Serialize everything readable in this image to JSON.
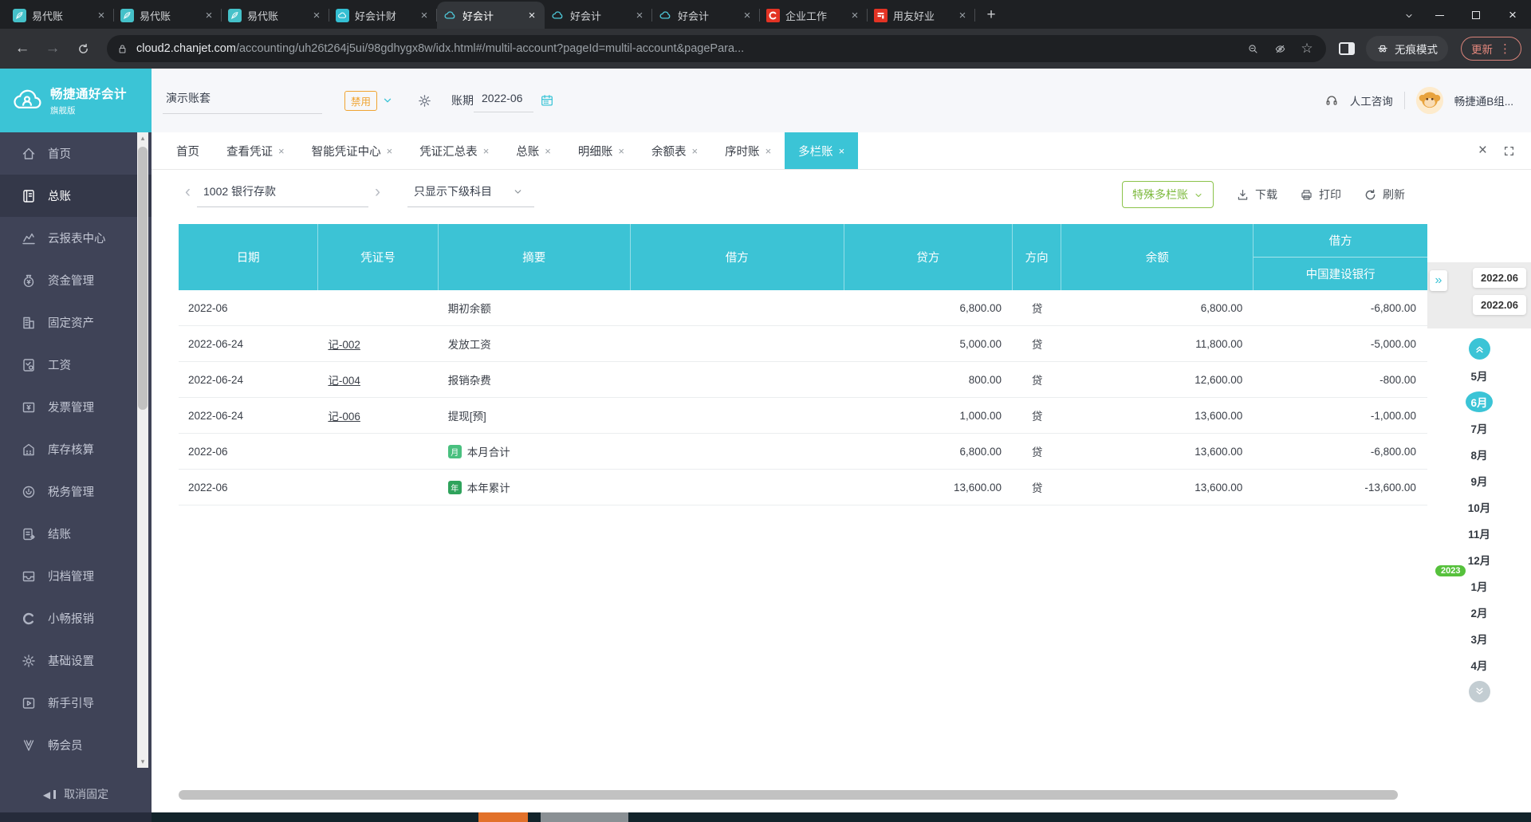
{
  "browser": {
    "tabs": [
      {
        "label": "易代账",
        "icon": "feather-icon",
        "active": false
      },
      {
        "label": "易代账",
        "icon": "feather-icon",
        "active": false
      },
      {
        "label": "易代账",
        "icon": "feather-icon",
        "active": false
      },
      {
        "label": "好会计财",
        "icon": "cloud-solid-icon",
        "active": false
      },
      {
        "label": "好会计",
        "icon": "cloud-icon",
        "active": true
      },
      {
        "label": "好会计",
        "icon": "cloud-icon",
        "active": false
      },
      {
        "label": "好会计",
        "icon": "cloud-icon",
        "active": false
      },
      {
        "label": "企业工作",
        "icon": "c-logo-icon",
        "active": false
      },
      {
        "label": "用友好业",
        "icon": "uf-logo-icon",
        "active": false
      }
    ],
    "url_domain": "cloud2.chanjet.com",
    "url_path": "/accounting/uh26t264j5ui/98gdhygx8w/idx.html#/multil-account?pageId=multil-account&pagePara...",
    "incognito_label": "无痕模式",
    "update_label": "更新"
  },
  "app_header": {
    "brand_name": "畅捷通好会计",
    "brand_edition": "旗舰版",
    "account_set_label": "演示账套",
    "disabled_badge": "禁用",
    "period_label": "账期",
    "period_value": "2022-06",
    "support_label": "人工咨询",
    "user_name": "畅捷通B组..."
  },
  "sidebar": {
    "items": [
      {
        "label": "首页",
        "icon": "home-icon",
        "active": false
      },
      {
        "label": "总账",
        "icon": "ledger-icon",
        "active": true
      },
      {
        "label": "云报表中心",
        "icon": "report-icon",
        "active": false
      },
      {
        "label": "资金管理",
        "icon": "funds-icon",
        "active": false
      },
      {
        "label": "固定资产",
        "icon": "fixed-asset-icon",
        "active": false
      },
      {
        "label": "工资",
        "icon": "payroll-icon",
        "active": false
      },
      {
        "label": "发票管理",
        "icon": "invoice-icon",
        "active": false
      },
      {
        "label": "库存核算",
        "icon": "inventory-icon",
        "active": false
      },
      {
        "label": "税务管理",
        "icon": "tax-icon",
        "active": false
      },
      {
        "label": "结账",
        "icon": "closing-icon",
        "active": false
      },
      {
        "label": "归档管理",
        "icon": "archive-icon",
        "active": false
      },
      {
        "label": "小畅报销",
        "icon": "reimburse-icon",
        "active": false
      },
      {
        "label": "基础设置",
        "icon": "settings-icon",
        "active": false
      },
      {
        "label": "新手引导",
        "icon": "guide-icon",
        "active": false
      },
      {
        "label": "畅会员",
        "icon": "member-icon",
        "active": false
      }
    ],
    "unpin_label": "取消固定"
  },
  "workspace_tabs": [
    {
      "label": "首页",
      "closable": false,
      "active": false
    },
    {
      "label": "查看凭证",
      "closable": true,
      "active": false
    },
    {
      "label": "智能凭证中心",
      "closable": true,
      "active": false
    },
    {
      "label": "凭证汇总表",
      "closable": true,
      "active": false
    },
    {
      "label": "总账",
      "closable": true,
      "active": false
    },
    {
      "label": "明细账",
      "closable": true,
      "active": false
    },
    {
      "label": "余额表",
      "closable": true,
      "active": false
    },
    {
      "label": "序时账",
      "closable": true,
      "active": false
    },
    {
      "label": "多栏账",
      "closable": true,
      "active": true
    }
  ],
  "toolbar": {
    "account": "1002 银行存款",
    "scope_filter": "只显示下级科目",
    "special_button": "特殊多栏账",
    "download_label": "下载",
    "print_label": "打印",
    "refresh_label": "刷新"
  },
  "table": {
    "columns": [
      "日期",
      "凭证号",
      "摘要",
      "借方",
      "贷方",
      "方向",
      "余额"
    ],
    "extra_column": {
      "top": "借方",
      "bottom": "中国建设银行"
    },
    "rows": [
      {
        "date": "2022-06",
        "voucher": "",
        "summary": "期初余额",
        "summary_icon": "",
        "debit": "",
        "credit": "6,800.00",
        "direction": "贷",
        "balance": "6,800.00",
        "bank_debit": "-6,800.00"
      },
      {
        "date": "2022-06-24",
        "voucher": "记-002",
        "summary": "发放工资",
        "summary_icon": "",
        "debit": "",
        "credit": "5,000.00",
        "direction": "贷",
        "balance": "11,800.00",
        "bank_debit": "-5,000.00"
      },
      {
        "date": "2022-06-24",
        "voucher": "记-004",
        "summary": "报销杂费",
        "summary_icon": "",
        "debit": "",
        "credit": "800.00",
        "direction": "贷",
        "balance": "12,600.00",
        "bank_debit": "-800.00"
      },
      {
        "date": "2022-06-24",
        "voucher": "记-006",
        "summary": "提现[预]",
        "summary_icon": "",
        "debit": "",
        "credit": "1,000.00",
        "direction": "贷",
        "balance": "13,600.00",
        "bank_debit": "-1,000.00"
      },
      {
        "date": "2022-06",
        "voucher": "",
        "summary": "本月合计",
        "summary_icon": "month-total-icon",
        "debit": "",
        "credit": "6,800.00",
        "direction": "贷",
        "balance": "13,600.00",
        "bank_debit": "-6,800.00"
      },
      {
        "date": "2022-06",
        "voucher": "",
        "summary": "本年累计",
        "summary_icon": "year-total-icon",
        "debit": "",
        "credit": "13,600.00",
        "direction": "贷",
        "balance": "13,600.00",
        "bank_debit": "-13,600.00"
      }
    ]
  },
  "period_panel": {
    "period_chips": [
      "2022.06",
      "2022.06"
    ],
    "months": [
      {
        "label": "5月",
        "active": false
      },
      {
        "label": "6月",
        "active": true
      },
      {
        "label": "7月",
        "active": false
      },
      {
        "label": "8月",
        "active": false
      },
      {
        "label": "9月",
        "active": false
      },
      {
        "label": "10月",
        "active": false
      },
      {
        "label": "11月",
        "active": false
      },
      {
        "label": "12月",
        "active": false
      },
      {
        "label": "1月",
        "active": false,
        "year_badge": "2023"
      },
      {
        "label": "2月",
        "active": false
      },
      {
        "label": "3月",
        "active": false
      },
      {
        "label": "4月",
        "active": false
      }
    ]
  },
  "colors": {
    "accent_cyan": "#3bc4d6",
    "sidebar_bg": "#3f4357",
    "disabled_badge_orange": "#f0a431",
    "special_button_green": "#8bc34a",
    "update_coral": "#e4887d",
    "year_badge_green": "#56c13c",
    "table_header_cyan": "#3cc3d5"
  }
}
